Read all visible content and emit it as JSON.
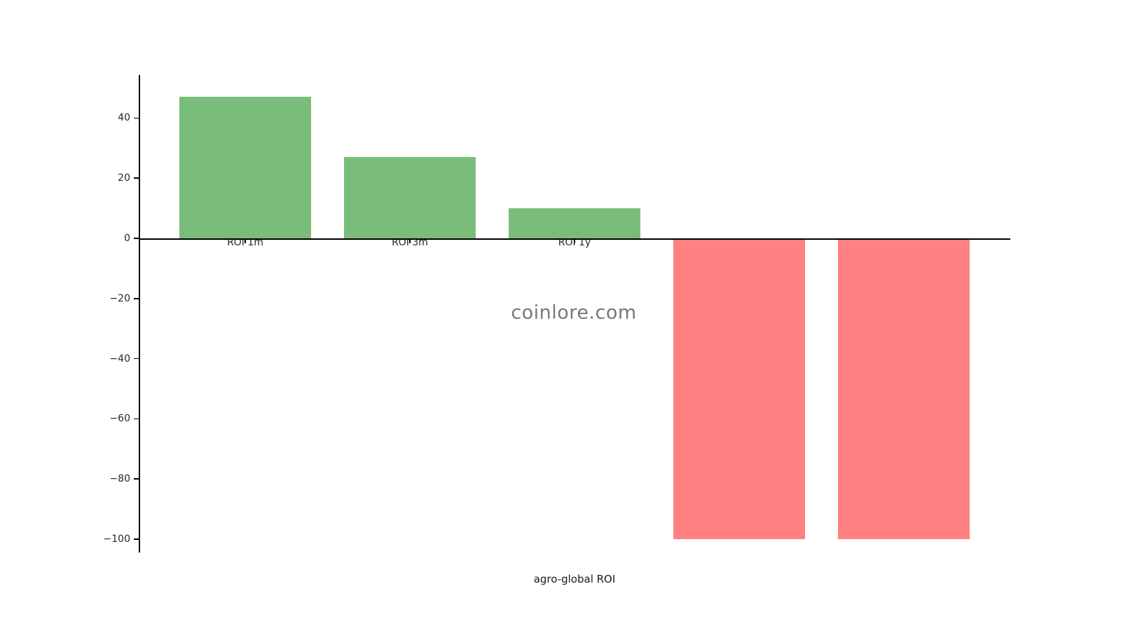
{
  "chart_data": {
    "type": "bar",
    "title": "agro-global ROI",
    "watermark": "coinlore.com",
    "categories": [
      "ROI 1m",
      "ROI 3m",
      "ROI 1y",
      "",
      ""
    ],
    "values": [
      47,
      27,
      10,
      -100,
      -100
    ],
    "yticks": [
      40,
      20,
      0,
      -20,
      -40,
      -60,
      -80,
      -100
    ],
    "ylim": [
      -104,
      54
    ],
    "xlabel": "",
    "ylabel": "",
    "grid": false,
    "legend": "none",
    "colors": {
      "positive": "#7abd7a",
      "negative": "#ff8181",
      "axis": "#000000",
      "tick_label": "#262626",
      "watermark": "#787878"
    }
  }
}
